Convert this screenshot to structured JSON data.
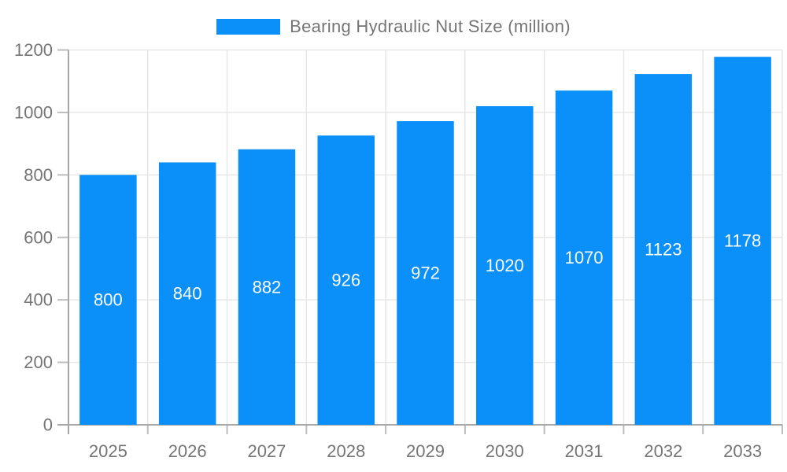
{
  "chart_data": {
    "type": "bar",
    "title": "",
    "series_name": "Bearing Hydraulic Nut Size (million)",
    "categories": [
      "2025",
      "2026",
      "2027",
      "2028",
      "2029",
      "2030",
      "2031",
      "2032",
      "2033"
    ],
    "values": [
      800,
      840,
      882,
      926,
      972,
      1020,
      1070,
      1123,
      1178
    ],
    "xlabel": "",
    "ylabel": "",
    "ylim": [
      0,
      1200
    ],
    "yticks": [
      0,
      200,
      400,
      600,
      800,
      1000,
      1200
    ],
    "grid": true,
    "legend_position": "top-center",
    "data_labels": "inside-center",
    "colors": {
      "bar": "#0A90F8",
      "bar_label_text": "#FFFFFF",
      "axis_text": "#757575",
      "axis_line": "#A8A8A8",
      "tick_line": "#BDBDBD",
      "grid_line": "#E7E7E7",
      "background": "#FFFFFF"
    }
  }
}
